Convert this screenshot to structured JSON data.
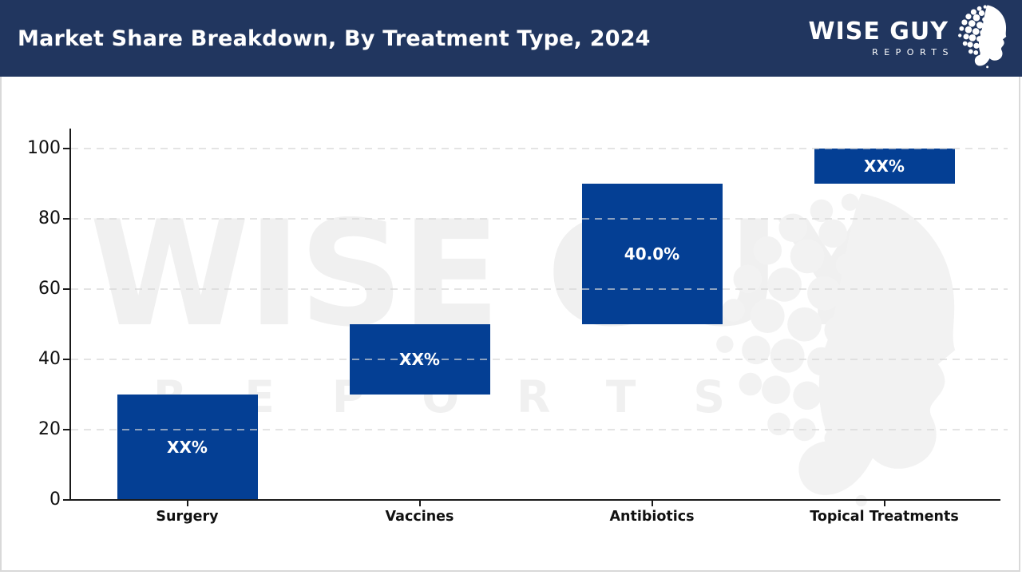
{
  "header": {
    "title": "Market Share Breakdown, By Treatment Type, 2024",
    "logo": {
      "line1": "WISE GUY",
      "line2": "REPORTS"
    },
    "bg_color": "#21365f"
  },
  "watermark": {
    "line1": "WISE GUY",
    "line2": "REPORTS"
  },
  "chart_data": {
    "type": "bar",
    "subtype": "floating-segment-waterfall",
    "title": "Market Share Breakdown, By Treatment Type, 2024",
    "categories": [
      "Surgery",
      "Vaccines",
      "Antibiotics",
      "Topical Treatments"
    ],
    "segments": [
      {
        "category": "Surgery",
        "start": 0,
        "end": 30,
        "value": 30,
        "label": "XX%"
      },
      {
        "category": "Vaccines",
        "start": 30,
        "end": 50,
        "value": 20,
        "label": "XX%"
      },
      {
        "category": "Antibiotics",
        "start": 50,
        "end": 90,
        "value": 40,
        "label": "40.0%"
      },
      {
        "category": "Topical Treatments",
        "start": 90,
        "end": 100,
        "value": 10,
        "label": "XX%"
      }
    ],
    "xlabel": "",
    "ylabel": "",
    "ylim": [
      0,
      100
    ],
    "yticks": [
      0,
      20,
      40,
      60,
      80,
      100
    ],
    "grid": "horizontal-dashed",
    "legend_position": "none",
    "bar_color": "#043f94",
    "label_color": "#ffffff"
  }
}
